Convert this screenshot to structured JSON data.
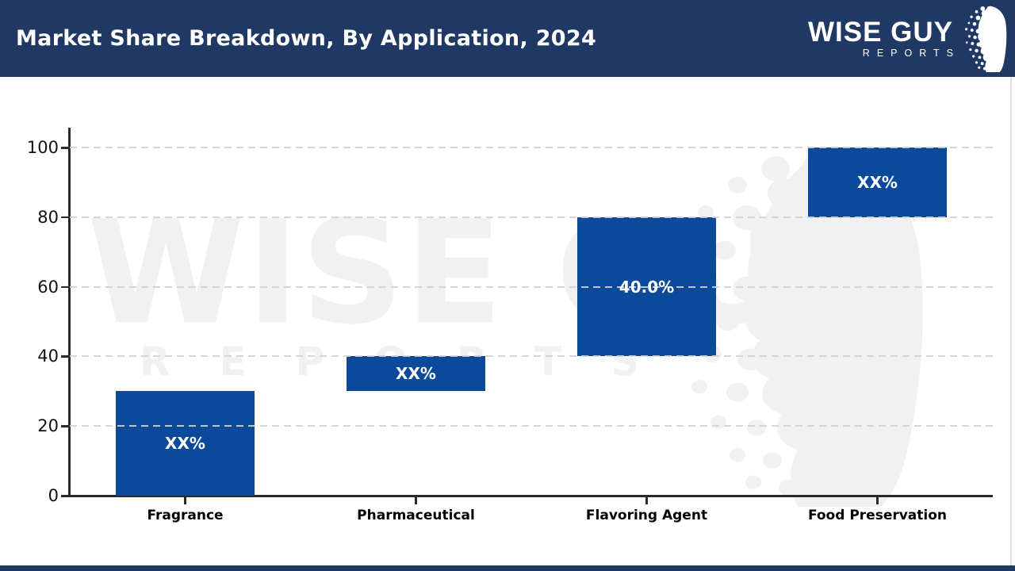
{
  "header": {
    "title": "Market Share Breakdown, By Application, 2024",
    "logo": {
      "line1": "WISE GUY",
      "line2": "REPORTS"
    }
  },
  "watermark": {
    "line1": "WISE GUY",
    "line2": "REPORTS"
  },
  "chart_data": {
    "type": "bar",
    "variant": "waterfall",
    "title": "Market Share Breakdown, By Application, 2024",
    "categories": [
      "Fragrance",
      "Pharmaceutical",
      "Flavoring Agent",
      "Food Preservation"
    ],
    "segments": [
      {
        "category": "Fragrance",
        "start": 0,
        "end": 30,
        "label": "XX%"
      },
      {
        "category": "Pharmaceutical",
        "start": 30,
        "end": 40,
        "label": "XX%"
      },
      {
        "category": "Flavoring Agent",
        "start": 40,
        "end": 80,
        "label": "40.0%"
      },
      {
        "category": "Food Preservation",
        "start": 80,
        "end": 100,
        "label": "XX%"
      }
    ],
    "xlabel": "",
    "ylabel": "",
    "ylim": [
      0,
      105
    ],
    "yticks": [
      0,
      20,
      40,
      60,
      80,
      100
    ],
    "grid": {
      "axis": "y",
      "style": "dashed",
      "drawn_over_bars": true
    },
    "legend": "none"
  },
  "colors": {
    "header_bg": "#1f3864",
    "footer_bg": "#1f3864",
    "bar": "#0b4a9b",
    "bar_label": "#ffffff",
    "gridline": "#d2d2d2",
    "axis": "#2a2a2a",
    "watermark": "#f1f1f1",
    "title_text": "#ffffff"
  }
}
